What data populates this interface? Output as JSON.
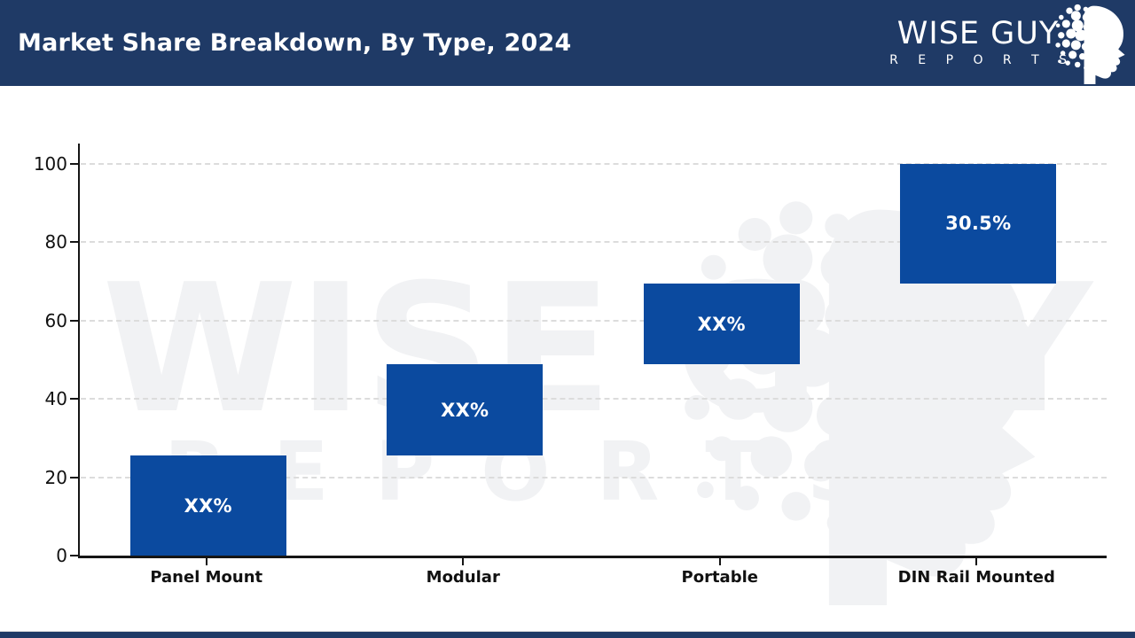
{
  "header": {
    "title": "Market Share Breakdown, By Type, 2024",
    "logo": {
      "name_line": "WISE GUY",
      "reports_line": "R E P O R T S"
    }
  },
  "watermark": {
    "line1": "WISE GUY",
    "line2": "R E P O R T S"
  },
  "chart_data": {
    "type": "bar",
    "subtype": "floating-waterfall",
    "title": "Market Share Breakdown, By Type, 2024",
    "categories": [
      "Panel Mount",
      "Modular",
      "Portable",
      "DIN Rail Mounted"
    ],
    "values": [
      25.5,
      23.3,
      20.7,
      30.5
    ],
    "segments": [
      {
        "category": "Panel Mount",
        "start": 0,
        "end": 25.5,
        "label": "XX%"
      },
      {
        "category": "Modular",
        "start": 25.5,
        "end": 48.8,
        "label": "XX%"
      },
      {
        "category": "Portable",
        "start": 48.8,
        "end": 69.5,
        "label": "XX%"
      },
      {
        "category": "DIN Rail Mounted",
        "start": 69.5,
        "end": 100,
        "label": "30.5%"
      }
    ],
    "xlabel": "",
    "ylabel": "",
    "ylim": [
      0,
      100
    ],
    "yticks": [
      0,
      20,
      40,
      60,
      80,
      100
    ],
    "grid": {
      "horizontal": true,
      "style": "dashed",
      "color": "#dcdcdc"
    },
    "legend": "none",
    "bar_color": "#0b4a9f",
    "bar_label_color": "#ffffff"
  },
  "colors": {
    "header_bg": "#1f3a66",
    "background": "#ffffff",
    "axis": "#151515",
    "watermark": "#f1f2f4"
  }
}
